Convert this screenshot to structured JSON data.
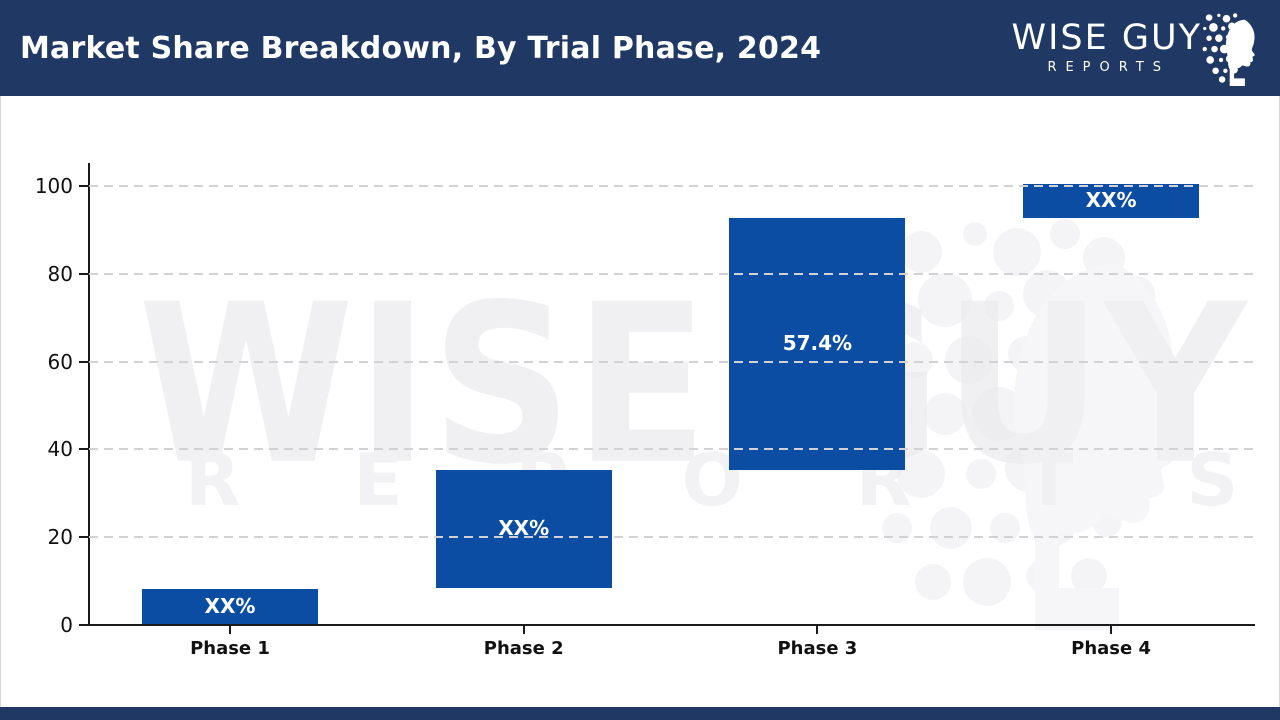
{
  "header": {
    "title": "Market Share Breakdown, By Trial Phase, 2024",
    "logo": {
      "line1": "WISE GUY",
      "line2": "REPORTS"
    }
  },
  "watermark": {
    "line1": "WISE GUY",
    "line2": "R E P O R T S"
  },
  "colors": {
    "header_bg": "#1f3864",
    "footer_bg": "#1f3864",
    "bar": "#0b4da2",
    "gridline": "#d2d2d4",
    "axis": "#1a1a1a",
    "bar_label": "#ffffff",
    "watermark": "#f0f0f3"
  },
  "chart_data": {
    "type": "bar",
    "subtype": "floating-waterfall",
    "title": "Market Share Breakdown, By Trial Phase, 2024",
    "categories": [
      "Phase 1",
      "Phase 2",
      "Phase 3",
      "Phase 4"
    ],
    "series": [
      {
        "name": "Market Share %",
        "segments": [
          {
            "category": "Phase 1",
            "from": 0,
            "to": 8.2,
            "label": "XX%"
          },
          {
            "category": "Phase 2",
            "from": 8.4,
            "to": 35.2,
            "label": "XX%"
          },
          {
            "category": "Phase 3",
            "from": 35.2,
            "to": 92.6,
            "label": "57.4%"
          },
          {
            "category": "Phase 4",
            "from": 92.8,
            "to": 100.4,
            "label": "XX%"
          }
        ]
      }
    ],
    "xlabel": "",
    "ylabel": "",
    "ylim": [
      0,
      100
    ],
    "yticks": [
      0,
      20,
      40,
      60,
      80,
      100
    ],
    "grid": "horizontal dashed, drawn above bars",
    "legend": "none"
  }
}
